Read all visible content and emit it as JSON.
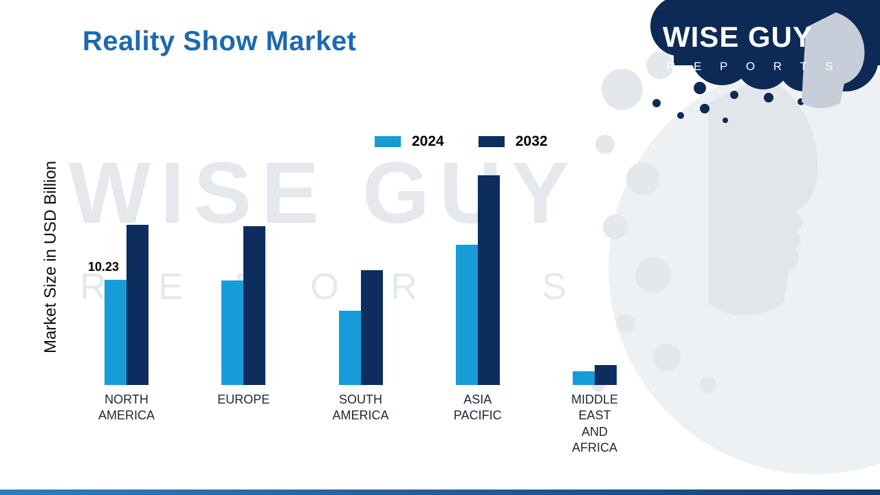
{
  "page": {
    "title": "Reality Show Market"
  },
  "logo": {
    "line1": "WISE GUY",
    "line2": "R E P O R T S"
  },
  "watermark": {
    "line1": "WISE GUY",
    "line2": "R E P O R T S"
  },
  "colors": {
    "title_blue": "#1c69b0",
    "series_2024": "#189cd8",
    "series_2032": "#0d2d5e",
    "watermark_gray": "#cdd3da",
    "logo_navy": "#0d2a56",
    "bottom_bar_left": "#2b7ec2",
    "bottom_bar_right": "#123f7a"
  },
  "chart_data": {
    "type": "bar",
    "title": "Reality Show Market",
    "xlabel": "",
    "ylabel": "Market Size in USD Billion",
    "unit": "USD Billion",
    "legend_position": "top",
    "grid": false,
    "ylim": [
      0,
      22
    ],
    "categories": [
      "NORTH AMERICA",
      "EUROPE",
      "SOUTH AMERICA",
      "ASIA PACIFIC",
      "MIDDLE EAST AND AFRICA"
    ],
    "category_lines": [
      [
        "NORTH",
        "AMERICA"
      ],
      [
        "EUROPE"
      ],
      [
        "SOUTH",
        "AMERICA"
      ],
      [
        "ASIA",
        "PACIFIC"
      ],
      [
        "MIDDLE",
        "EAST",
        "AND",
        "AFRICA"
      ]
    ],
    "series": [
      {
        "name": "2024",
        "color": "#189cd8",
        "values": [
          10.23,
          10.1,
          7.2,
          13.6,
          1.3
        ]
      },
      {
        "name": "2032",
        "color": "#0d2d5e",
        "values": [
          15.5,
          15.4,
          11.1,
          20.3,
          1.9
        ]
      }
    ],
    "value_label": {
      "text": "10.23",
      "category_index": 0,
      "series_index": 0
    }
  }
}
